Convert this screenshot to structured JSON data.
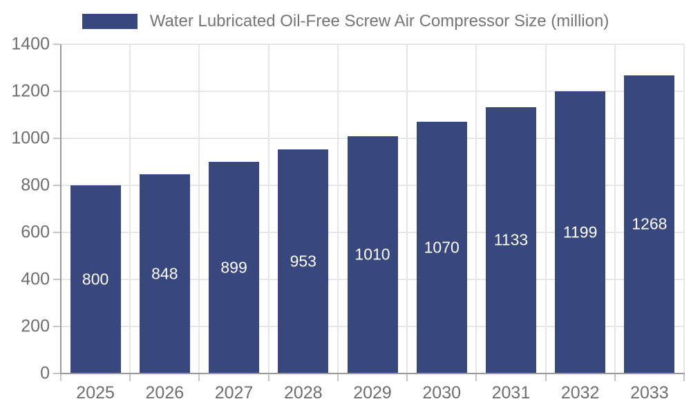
{
  "legend": {
    "label": "Water Lubricated Oil-Free Screw Air Compressor Size (million)"
  },
  "chart_data": {
    "type": "bar",
    "title": "Water Lubricated Oil-Free Screw Air Compressor Size (million)",
    "categories": [
      "2025",
      "2026",
      "2027",
      "2028",
      "2029",
      "2030",
      "2031",
      "2032",
      "2033"
    ],
    "values": [
      800,
      848,
      899,
      953,
      1010,
      1070,
      1133,
      1199,
      1268
    ],
    "xlabel": "",
    "ylabel": "",
    "ylim": [
      0,
      1400
    ],
    "ytick_step": 200,
    "ytick_labels": [
      "0",
      "200",
      "400",
      "600",
      "800",
      "1000",
      "1200",
      "1400"
    ],
    "grid": true,
    "legend_position": "top",
    "colors": {
      "bar": "#38487E",
      "bar_label": "#ffffff",
      "axis_text": "#6e6e6e",
      "legend_text": "#757575",
      "gridline": "#e6e6e6",
      "axis_line": "#999999",
      "tick_mark": "#c4c4c4",
      "background": "#ffffff"
    }
  }
}
